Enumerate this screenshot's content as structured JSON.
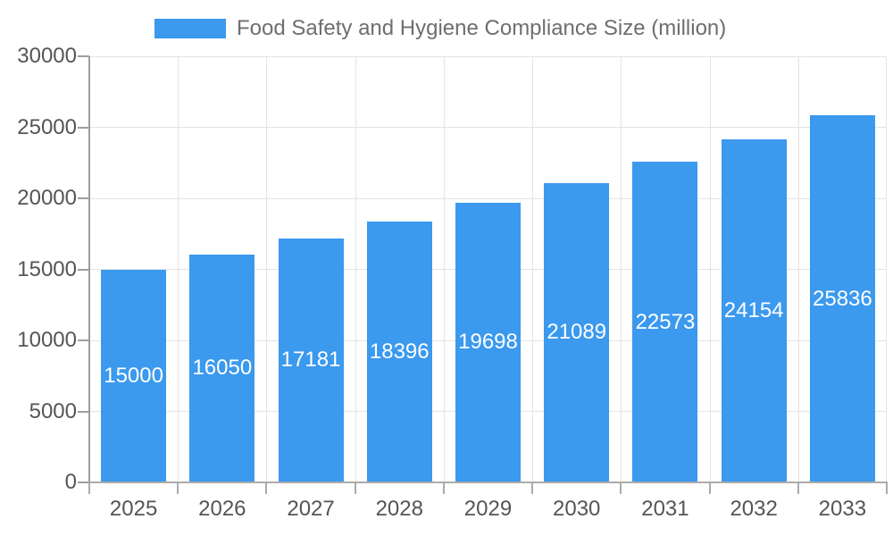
{
  "chart_data": {
    "type": "bar",
    "title": "Food Safety and Hygiene Compliance Size (million)",
    "categories": [
      "2025",
      "2026",
      "2027",
      "2028",
      "2029",
      "2030",
      "2031",
      "2032",
      "2033"
    ],
    "values": [
      15000,
      16050,
      17181,
      18396,
      19698,
      21089,
      22573,
      24154,
      25836
    ],
    "series": [
      {
        "name": "Food Safety and Hygiene Compliance Size (million)",
        "values": [
          15000,
          16050,
          17181,
          18396,
          19698,
          21089,
          22573,
          24154,
          25836
        ]
      }
    ],
    "xlabel": "",
    "ylabel": "",
    "ylim": [
      0,
      30000
    ],
    "yticks": [
      0,
      5000,
      10000,
      15000,
      20000,
      25000,
      30000
    ],
    "grid": true,
    "legend_position": "top",
    "value_labels": "inside-bar-centered",
    "colors": {
      "bar": "#3b99ee",
      "bar_value_label": "#ffffff",
      "grid": "#e4e4e4",
      "y_axis": "#9e9e9e",
      "x_axis": "#ababab",
      "tick_label": "#555555",
      "title": "#6e6e6e",
      "background": "#ffffff"
    }
  }
}
